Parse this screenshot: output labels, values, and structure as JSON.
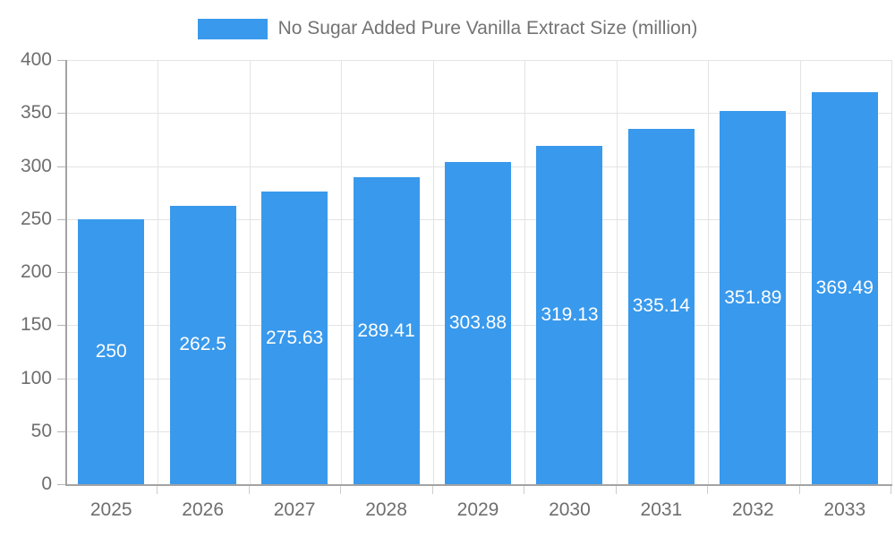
{
  "chart_data": {
    "type": "bar",
    "title": "No Sugar Added Pure Vanilla Extract Size (million)",
    "legend": {
      "position": "top",
      "label": "No Sugar Added Pure Vanilla Extract Size (million)"
    },
    "categories": [
      "2025",
      "2026",
      "2027",
      "2028",
      "2029",
      "2030",
      "2031",
      "2032",
      "2033"
    ],
    "series": [
      {
        "name": "No Sugar Added Pure Vanilla Extract Size (million)",
        "values": [
          250,
          262.5,
          275.63,
          289.41,
          303.88,
          319.13,
          335.14,
          351.89,
          369.49
        ],
        "value_labels": [
          "250",
          "262.5",
          "275.63",
          "289.41",
          "303.88",
          "319.13",
          "335.14",
          "351.89",
          "369.49"
        ]
      }
    ],
    "xlabel": "",
    "ylabel": "",
    "ylim": [
      0,
      400
    ],
    "ytick_step": 50,
    "ytick_labels": [
      "0",
      "50",
      "100",
      "150",
      "200",
      "250",
      "300",
      "350",
      "400"
    ],
    "grid": true,
    "colors": {
      "bar": "#3999EC",
      "value_label_text": "#ffffff",
      "axis_text": "#6e6e6e",
      "legend_text": "#737373",
      "gridline": "#e4e4e4",
      "axis_line": "#a3a3a3"
    }
  }
}
